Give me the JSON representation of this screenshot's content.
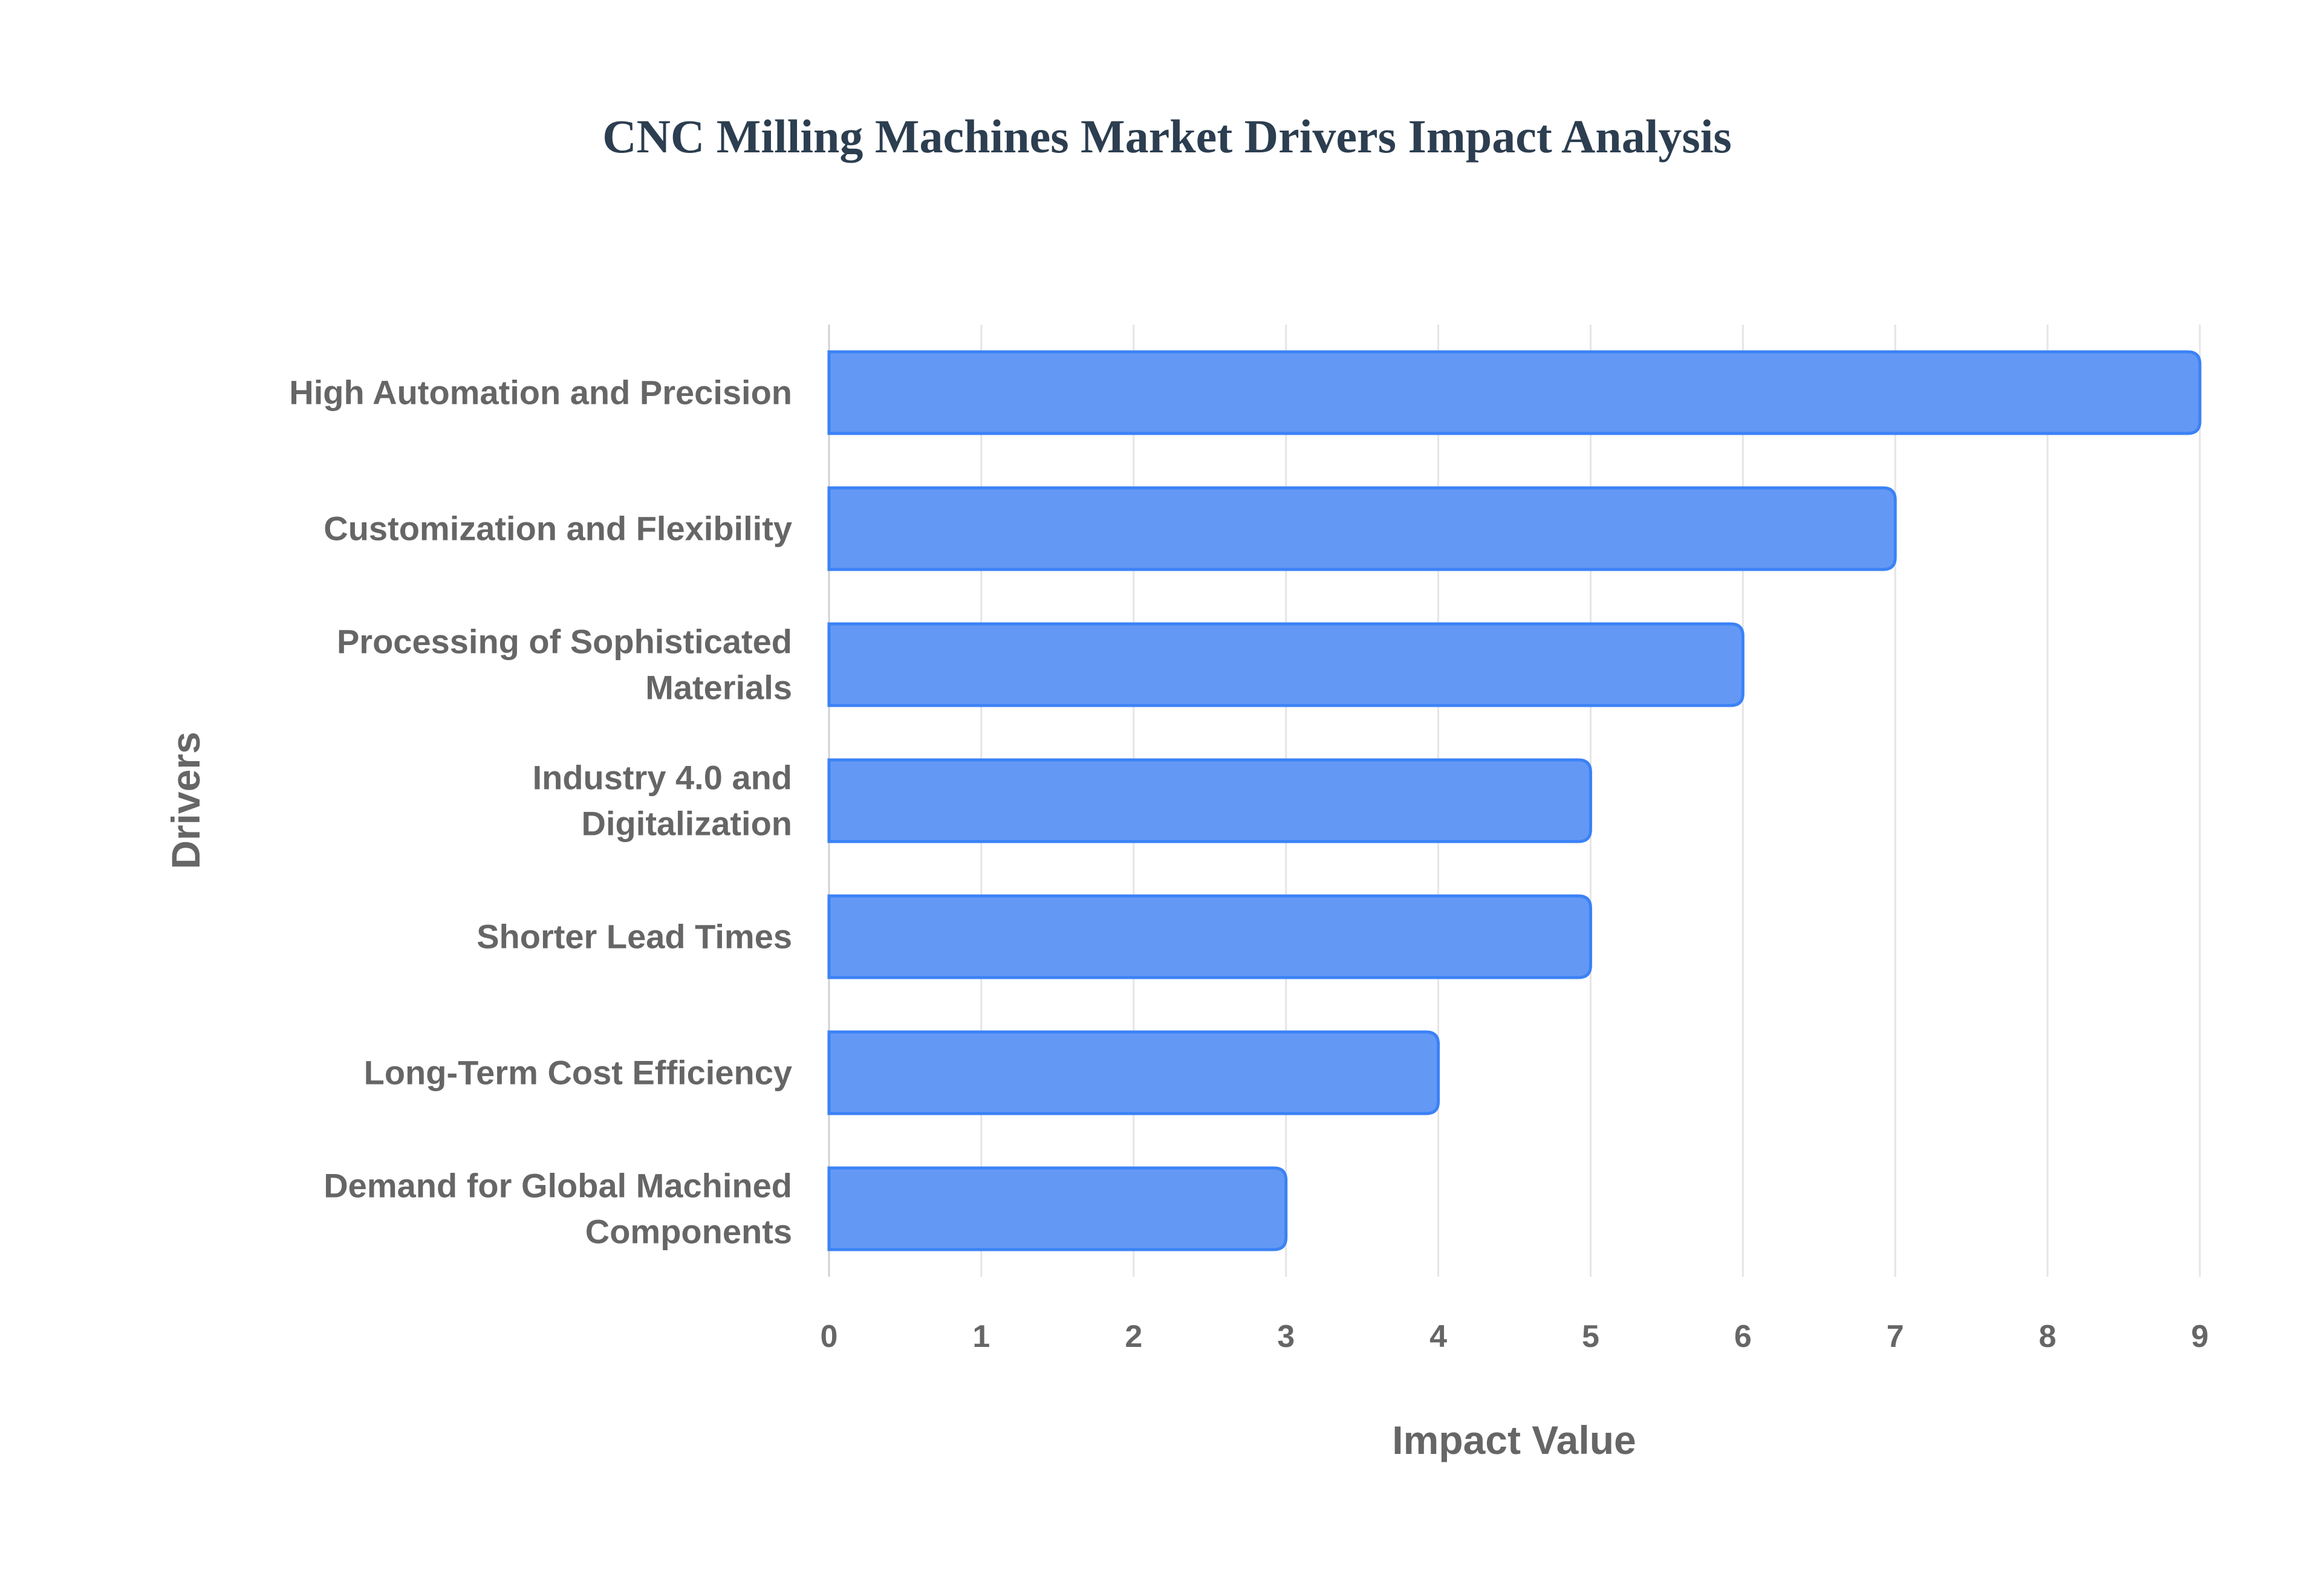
{
  "chart_data": {
    "type": "bar",
    "orientation": "horizontal",
    "title": "CNC Milling Machines Market Drivers Impact Analysis",
    "xlabel": "Impact Value",
    "ylabel": "Drivers",
    "xlim": [
      0,
      9
    ],
    "xticks": [
      "0",
      "1",
      "2",
      "3",
      "4",
      "5",
      "6",
      "7",
      "8",
      "9"
    ],
    "grid": true,
    "categories": [
      [
        "High Automation and Precision"
      ],
      [
        "Customization and Flexibility"
      ],
      [
        "Processing of Sophisticated",
        "Materials"
      ],
      [
        "Industry 4.0 and",
        "Digitalization"
      ],
      [
        "Shorter Lead Times"
      ],
      [
        "Long-Term Cost Efficiency"
      ],
      [
        "Demand for Global Machined",
        "Components"
      ]
    ],
    "values": [
      9,
      7,
      6,
      5,
      5,
      4,
      3
    ],
    "colors": {
      "bar_fill": "#6399f5",
      "bar_border": "#3b82f6",
      "title": "#2c3e50",
      "text": "#666666",
      "grid": "#e5e5e5"
    }
  }
}
